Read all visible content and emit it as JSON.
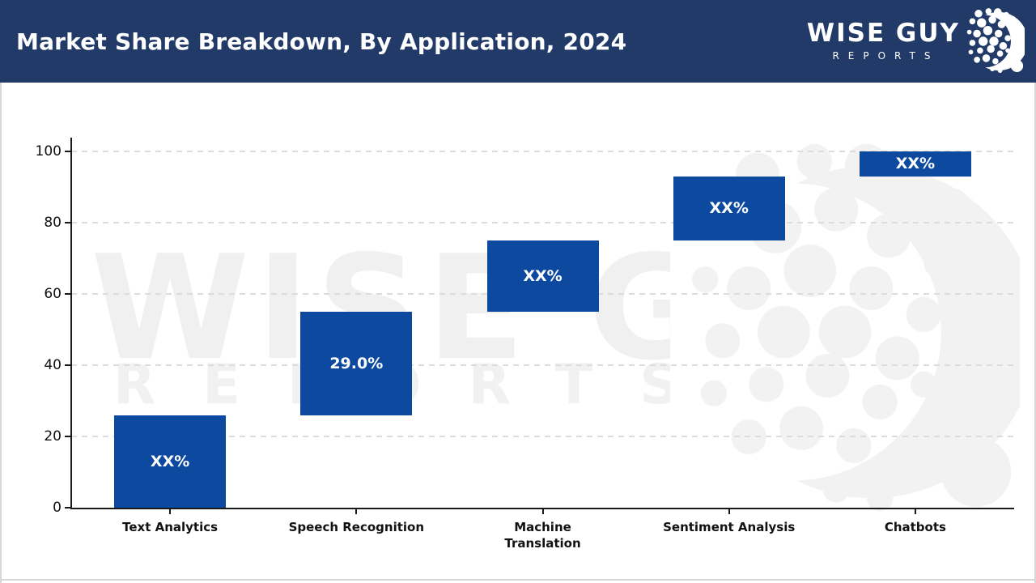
{
  "header": {
    "title": "Market Share Breakdown, By Application, 2024",
    "logo": {
      "line1": "WISE GUY",
      "line2": "REPORTS"
    }
  },
  "watermark": {
    "line1": "WISE GUY",
    "line2": "REPORTS"
  },
  "chart_data": {
    "type": "bar",
    "subtype": "waterfall",
    "title": "Market Share Breakdown, By Application, 2024",
    "categories": [
      "Text Analytics",
      "Speech Recognition",
      "Machine Translation",
      "Sentiment Analysis",
      "Chatbots"
    ],
    "categories_display": [
      [
        "Text Analytics"
      ],
      [
        "Speech Recognition"
      ],
      [
        "Machine",
        "Translation"
      ],
      [
        "Sentiment Analysis"
      ],
      [
        "Chatbots"
      ]
    ],
    "segments": [
      [
        0,
        26
      ],
      [
        26,
        55
      ],
      [
        55,
        75
      ],
      [
        75,
        93
      ],
      [
        93,
        100
      ]
    ],
    "values": [
      26,
      29,
      20,
      18,
      7
    ],
    "bar_labels": [
      "XX%",
      "29.0%",
      "XX%",
      "XX%",
      "XX%"
    ],
    "xlabel": "",
    "ylabel": "",
    "ylim": [
      0,
      100
    ],
    "yticks": [
      0,
      20,
      40,
      60,
      80,
      100
    ],
    "grid": "dashed-horizontal",
    "legend": "none",
    "bar_color": "#0d4a9f",
    "bar_label_color": "#ffffff",
    "axis_color": "#1a1a1a",
    "gridline_color": "#dcdcdc"
  },
  "colors": {
    "header_bg": "#223a68",
    "canvas_bg": "#ffffff",
    "watermark": "#f0f0f1",
    "border": "#d6d6d6"
  }
}
